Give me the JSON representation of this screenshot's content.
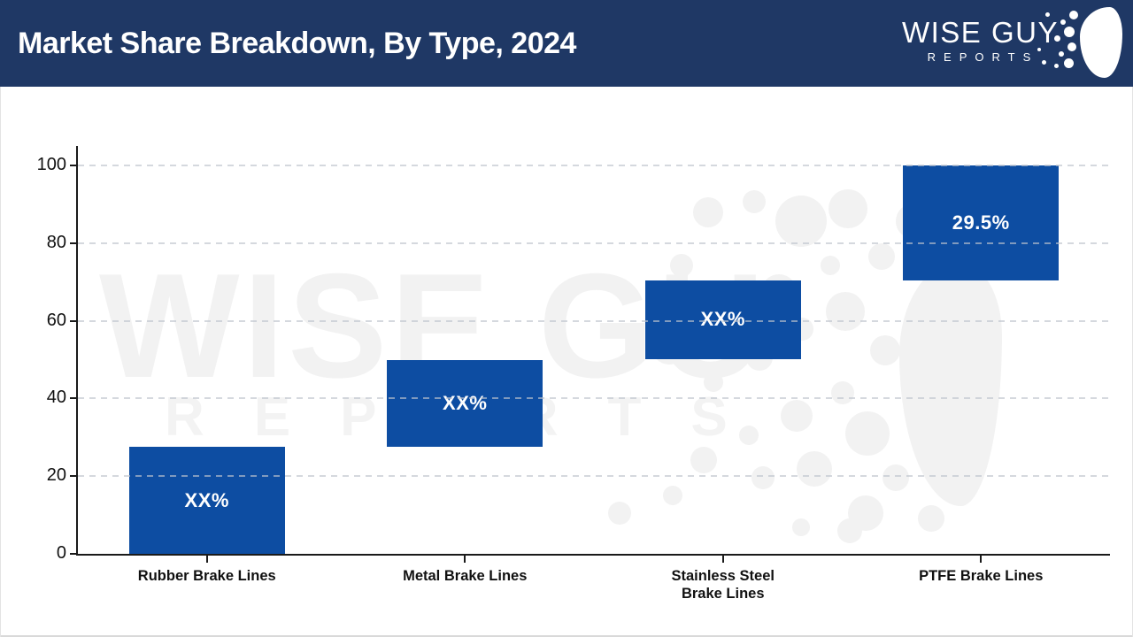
{
  "header": {
    "title": "Market Share Breakdown, By Type, 2024",
    "bg_color": "#1f3865",
    "logo": {
      "wordmark": "WISE GUY",
      "sub": "REPORTS",
      "icon": "dotted-face-profile-logo"
    }
  },
  "watermark": {
    "wordmark": "WISE GU",
    "sub": "REPORTS",
    "icon": "dotted-face-profile-watermark"
  },
  "chart_data": {
    "type": "bar",
    "subtype": "waterfall-floating-bars",
    "title": "Market Share Breakdown, By Type, 2024",
    "categories": [
      "Rubber Brake Lines",
      "Metal Brake Lines",
      "Stainless Steel\nBrake Lines",
      "PTFE Brake Lines"
    ],
    "segments": [
      {
        "category": "Rubber Brake Lines",
        "start": 0,
        "end": 27.5,
        "value": 27.5,
        "label": "XX%"
      },
      {
        "category": "Metal Brake Lines",
        "start": 27.5,
        "end": 50,
        "value": 22.5,
        "label": "XX%"
      },
      {
        "category": "Stainless Steel Brake Lines",
        "start": 50,
        "end": 70.5,
        "value": 20.5,
        "label": "XX%"
      },
      {
        "category": "PTFE Brake Lines",
        "start": 70.5,
        "end": 100,
        "value": 29.5,
        "label": "29.5%"
      }
    ],
    "xlabel": "",
    "ylabel": "",
    "ylim": [
      0,
      100
    ],
    "yticks": [
      0,
      20,
      40,
      60,
      80,
      100
    ],
    "grid": "horizontal-dashed",
    "legend": "none",
    "bar_color": "#0d4da2",
    "bar_label_color": "#ffffff",
    "axis_color": "#1a1a1a",
    "gridline_color": "#d9d9d9"
  }
}
